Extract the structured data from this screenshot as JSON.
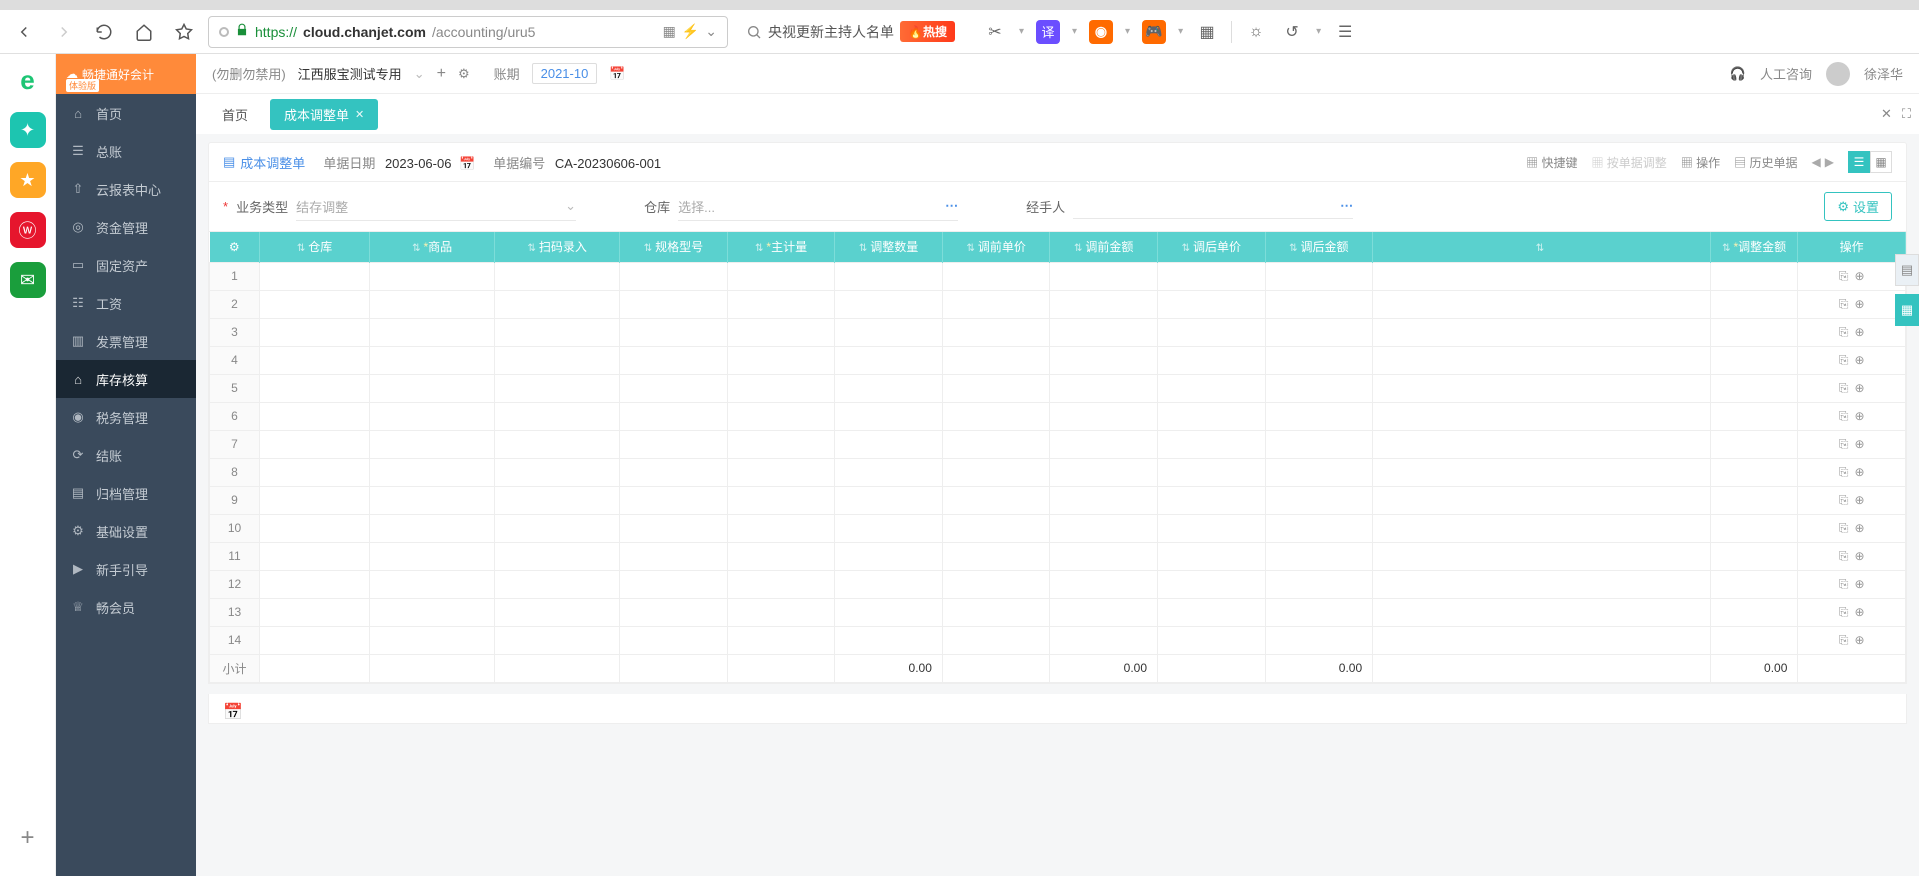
{
  "browser": {
    "url_proto": "https://",
    "url_domain": "cloud.chanjet.com",
    "url_path": "/accounting/uru5",
    "search_placeholder": "央视更新主持人名单",
    "hot_tag": "热搜",
    "ext_translate": "译"
  },
  "topbar": {
    "org_tag": "(勿删勿禁用)",
    "org_name": "江西服宝测试专用",
    "period_label": "账期",
    "period_value": "2021-10",
    "consult": "人工咨询",
    "user": "徐泽华"
  },
  "sidebar": {
    "brand": "畅捷通好会计",
    "brand_sub": "体验版",
    "items": [
      {
        "icon": "⌂",
        "label": "首页"
      },
      {
        "icon": "☰",
        "label": "总账"
      },
      {
        "icon": "⇧",
        "label": "云报表中心"
      },
      {
        "icon": "◎",
        "label": "资金管理"
      },
      {
        "icon": "▭",
        "label": "固定资产"
      },
      {
        "icon": "☷",
        "label": "工资"
      },
      {
        "icon": "▥",
        "label": "发票管理"
      },
      {
        "icon": "⌂",
        "label": "库存核算"
      },
      {
        "icon": "◉",
        "label": "税务管理"
      },
      {
        "icon": "⟳",
        "label": "结账"
      },
      {
        "icon": "▤",
        "label": "归档管理"
      },
      {
        "icon": "⚙",
        "label": "基础设置"
      },
      {
        "icon": "▶",
        "label": "新手引导"
      },
      {
        "icon": "♕",
        "label": "畅会员"
      }
    ],
    "active_index": 7
  },
  "tabs": {
    "home": "首页",
    "active": "成本调整单"
  },
  "doc": {
    "title": "成本调整单",
    "date_label": "单据日期",
    "date_value": "2023-06-06",
    "no_label": "单据编号",
    "no_value": "CA-20230606-001",
    "shortcut": "快捷键",
    "by_doc": "按单据调整",
    "operate": "操作",
    "history": "历史单据",
    "settings": "设置"
  },
  "form": {
    "biz_type_label": "业务类型",
    "biz_type_value": "结存调整",
    "warehouse_label": "仓库",
    "warehouse_value": "选择...",
    "handler_label": "经手人"
  },
  "grid": {
    "columns": [
      "",
      "仓库",
      "商品",
      "扫码录入",
      "规格型号",
      "主计量",
      "调整数量",
      "调前单价",
      "调前金额",
      "调后单价",
      "调后金额",
      "",
      "调整金额",
      "操作"
    ],
    "required_cols": [
      2,
      5,
      12
    ],
    "widths": [
      40,
      88,
      100,
      100,
      86,
      86,
      86,
      86,
      86,
      86,
      86,
      270,
      70,
      86
    ],
    "row_count": 14,
    "subtotal_label": "小计",
    "subtotal": {
      "col6": "0.00",
      "col8": "0.00",
      "col10": "0.00",
      "col12": "0.00"
    }
  }
}
